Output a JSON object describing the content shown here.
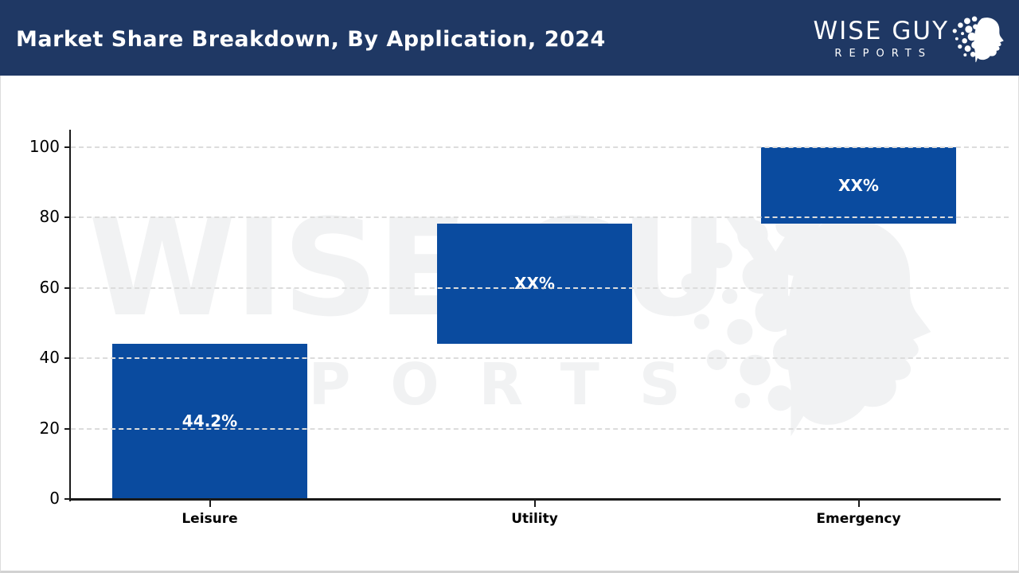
{
  "header": {
    "title": "Market Share Breakdown, By Application, 2024",
    "logo": {
      "primary": "WISE GUY",
      "secondary": "REPORTS"
    }
  },
  "watermark": {
    "primary": "WISE GUY",
    "secondary": "REPORTS"
  },
  "colors": {
    "header_background": "#1f3864",
    "bar_blue": "#0a4b9f",
    "bar_label": "#ffffff",
    "gridline": "#dcdcdc",
    "axis": "#1a1a1a",
    "watermark": "#f1f2f3"
  },
  "chart_data": {
    "type": "bar",
    "variant": "waterfall",
    "title": "Market Share Breakdown, By Application, 2024",
    "categories": [
      "Leisure",
      "Utility",
      "Emergency"
    ],
    "segments": [
      {
        "category": "Leisure",
        "start": 0,
        "end": 44.2,
        "label": "44.2%"
      },
      {
        "category": "Utility",
        "start": 44.2,
        "end": 78.2,
        "label": "XX%"
      },
      {
        "category": "Emergency",
        "start": 78.2,
        "end": 100,
        "label": "XX%"
      }
    ],
    "xlabel": "",
    "ylabel": "",
    "ylim": [
      0,
      105
    ],
    "yticks": [
      0,
      20,
      40,
      60,
      80,
      100
    ],
    "grid": "horizontal-dashed",
    "legend": "none",
    "bar_color": "#0a4b9f",
    "bar_label_color": "#ffffff"
  }
}
